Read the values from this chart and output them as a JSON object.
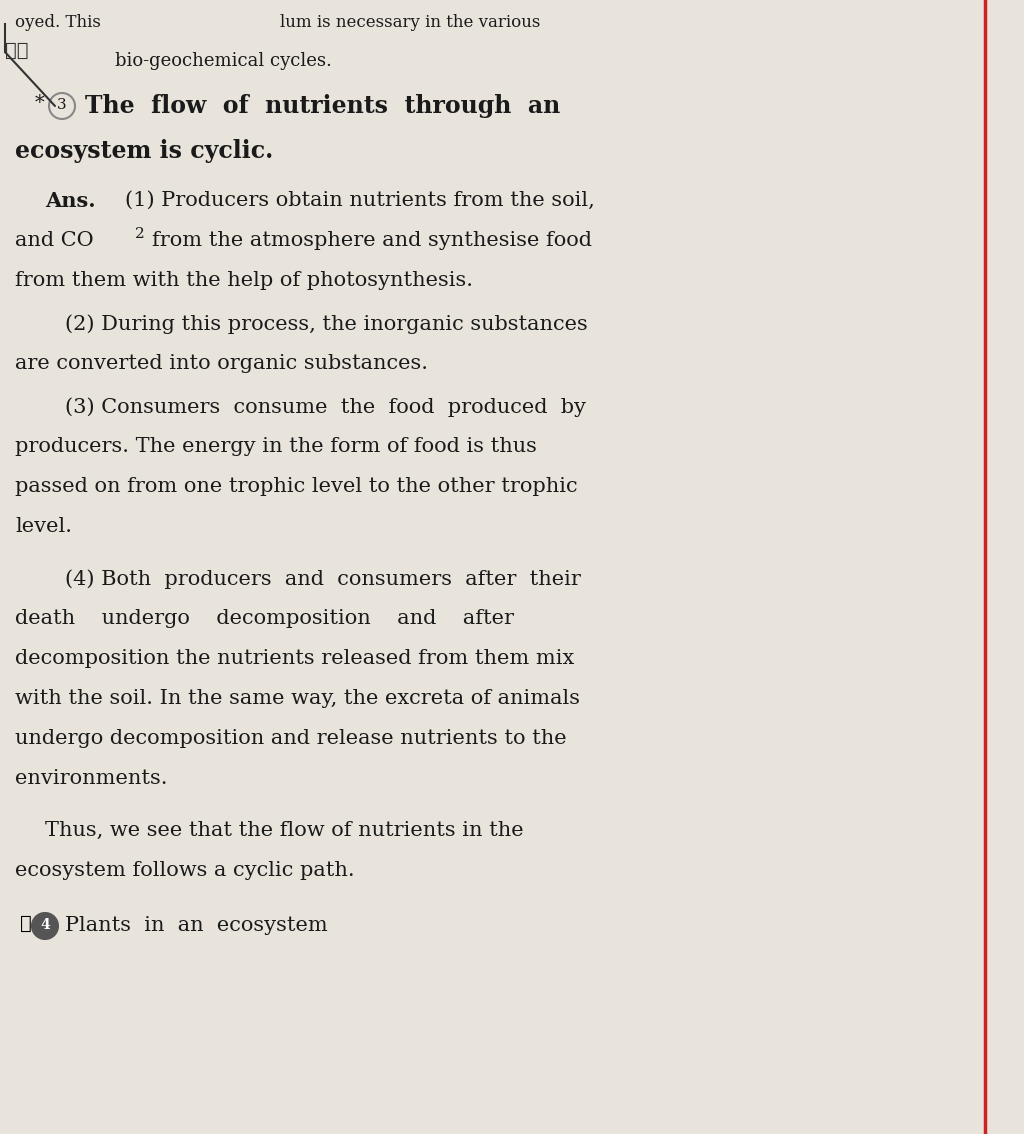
{
  "background_color": "#e8e4dc",
  "page_bg": "#d4cfc6",
  "text_color": "#1a1a1a",
  "red_line_color": "#cc2222",
  "title_line1": "bio-geochemical cycles.",
  "title_line1_prefix": "lum is necessary in the various",
  "title_line1_suffix": "oyed. This",
  "question_header": "* (3) The  flow  of  nutrients  through  an",
  "question_subheader": "ecosystem is cyclic.",
  "ans_label": "Ans.",
  "paragraphs": [
    "(1) Producers obtain nutrients from the soil, and CO₂ from the atmosphere and synthesise food from them with the help of photosynthesis.",
    "(2) During this process, the inorganic substances are converted into organic substances.",
    "(3) Consumers  consume  the  food  produced  by producers. The energy in the form of food is thus passed on from one trophic level to the other trophic level.",
    "(4) Both  producers  and  consumers  after  their death    undergo    decomposition    and    after decomposition the nutrients released from them mix with the soil. In the same way, the excreta of animals undergo decomposition and release nutrients to the environments.",
    "Thus, we see that the flow of nutrients in the ecosystem follows a cyclic path."
  ],
  "footer_text": "(4)  Plants  in  an  ecosystem",
  "font_size_title": 13,
  "font_size_body": 15,
  "font_size_question": 17,
  "font_size_ans": 15
}
